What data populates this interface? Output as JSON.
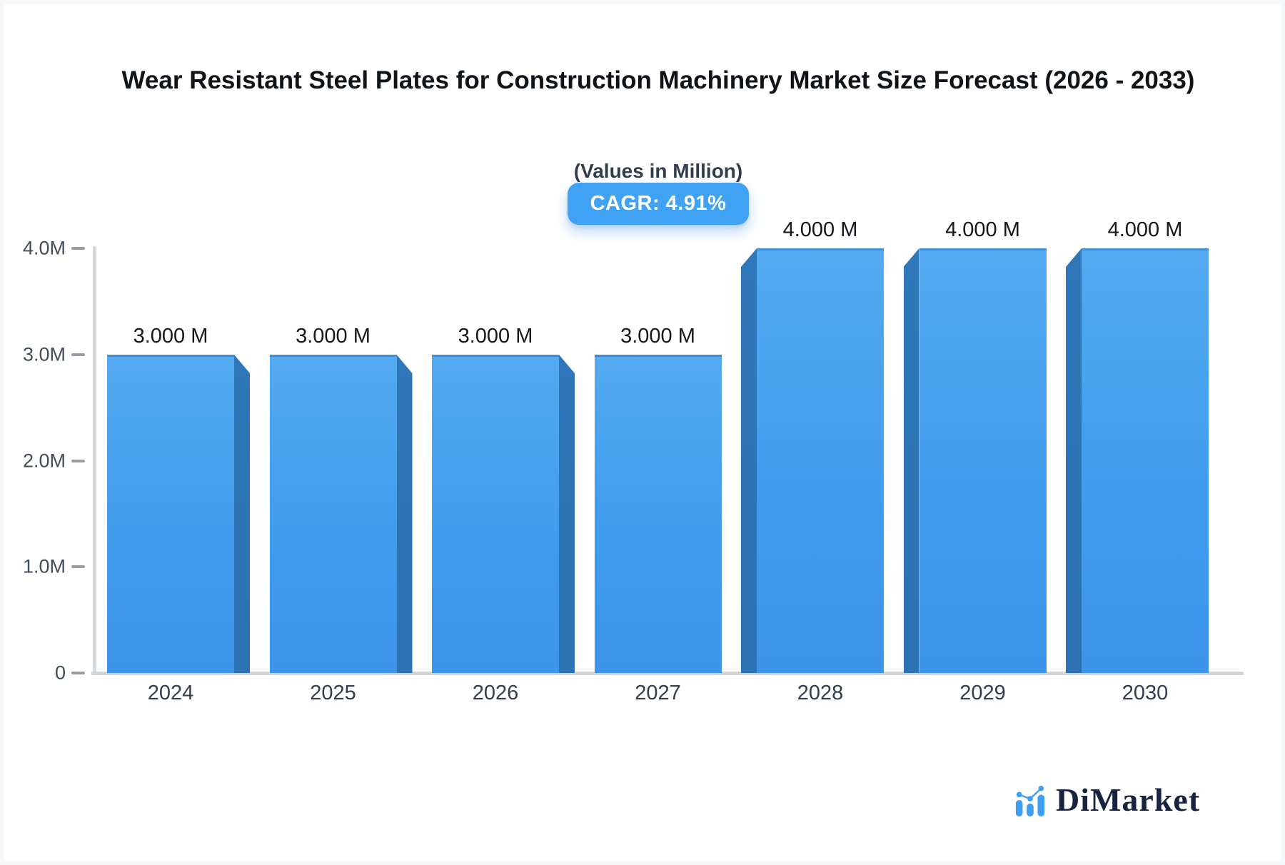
{
  "title": "Wear Resistant Steel Plates for Construction Machinery Market Size Forecast (2026 - 2033)",
  "subtitle": "(Values in Million)",
  "badge": {
    "label": "CAGR: 4.91%"
  },
  "brand": {
    "name": "DiMarket",
    "icon": "dimarket-bars-line-logo"
  },
  "colors": {
    "badge_bg": "#3fa2f4",
    "badge_text": "#ffffff",
    "bar_face": "#449fed",
    "bar_side": "#2e76b7",
    "logo_navy": "#18233f",
    "logo_blue": "#3f9ff2"
  },
  "chart_data": {
    "type": "bar",
    "title": "Wear Resistant Steel Plates for Construction Machinery Market Size Forecast (2026 - 2033)",
    "subtitle": "(Values in Million)",
    "annotation": "CAGR: 4.91%",
    "categories": [
      "2024",
      "2025",
      "2026",
      "2027",
      "2028",
      "2029",
      "2030"
    ],
    "values": [
      3.0,
      3.0,
      3.0,
      3.0,
      4.0,
      4.0,
      4.0
    ],
    "value_labels": [
      "3.000 M",
      "3.000 M",
      "3.000 M",
      "3.000 M",
      "4.000 M",
      "4.000 M",
      "4.000 M"
    ],
    "unit": "Million",
    "xlabel": "",
    "ylabel": "",
    "ylim": [
      0,
      4.0
    ],
    "y_ticks": [
      {
        "label": "0",
        "value": 0
      },
      {
        "label": "1.0M",
        "value": 1
      },
      {
        "label": "2.0M",
        "value": 2
      },
      {
        "label": "3.0M",
        "value": 3
      },
      {
        "label": "4.0M",
        "value": 4
      }
    ],
    "grid": false,
    "legend": false,
    "style": "3d-perspective-bars"
  }
}
